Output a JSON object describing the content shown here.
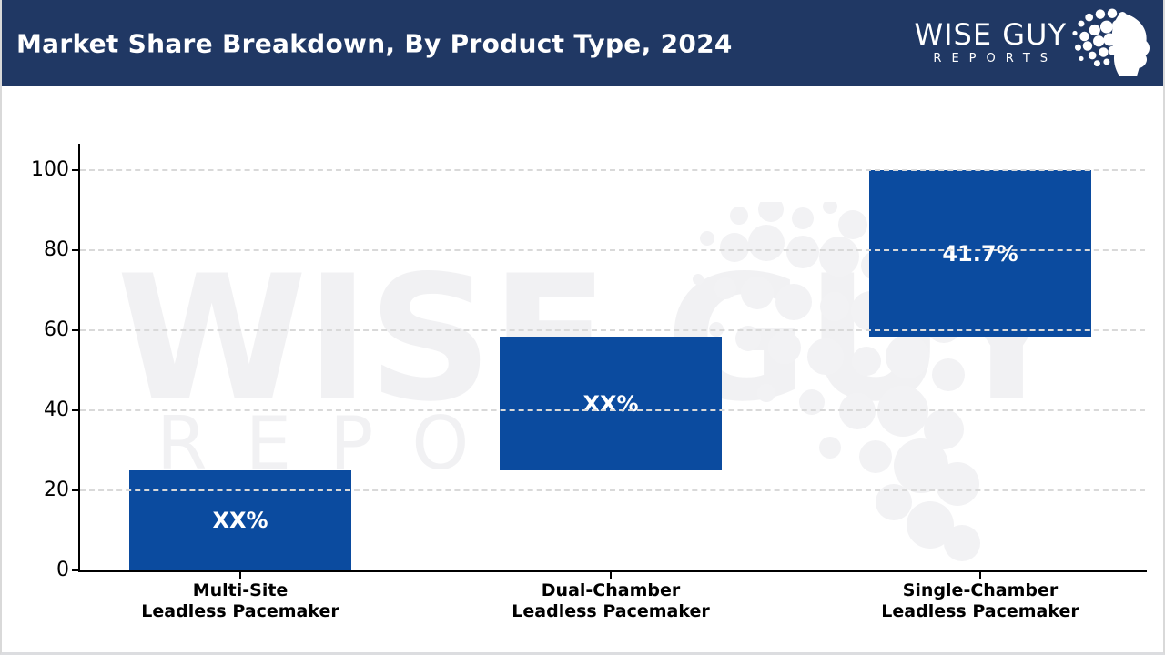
{
  "header": {
    "title": "Market Share Breakdown, By Product Type, 2024",
    "logo": {
      "line1": "WISE GUY",
      "line2": "REPORTS"
    }
  },
  "watermark": {
    "line1": "WISE GUY",
    "line2": "REPORTS"
  },
  "colors": {
    "header_bg": "#203864",
    "bar": "#0b4b9f",
    "bar_label_text": "#ffffff",
    "grid": "#d9d9d9",
    "axis": "#000000",
    "watermark": "#f1f1f3"
  },
  "chart_data": {
    "type": "bar",
    "subtype": "waterfall",
    "title": "Market Share Breakdown, By Product Type, 2024",
    "categories": [
      [
        "Multi-Site",
        "Leadless Pacemaker"
      ],
      [
        "Dual-Chamber",
        "Leadless Pacemaker"
      ],
      [
        "Single-Chamber",
        "Leadless Pacemaker"
      ]
    ],
    "series": [
      {
        "category": "Multi-Site Leadless Pacemaker",
        "start": 0,
        "end": 25,
        "value": 25.0,
        "label": "XX%"
      },
      {
        "category": "Dual-Chamber Leadless Pacemaker",
        "start": 25,
        "end": 58.3,
        "value": 33.3,
        "label": "XX%"
      },
      {
        "category": "Single-Chamber Leadless Pacemaker",
        "start": 58.3,
        "end": 100,
        "value": 41.7,
        "label": "41.7%"
      }
    ],
    "ylim": [
      0,
      100
    ],
    "yticks": [
      0,
      20,
      40,
      60,
      80,
      100
    ],
    "xlabel": "",
    "ylabel": "",
    "grid": "horizontal-dashed",
    "legend": "none"
  }
}
